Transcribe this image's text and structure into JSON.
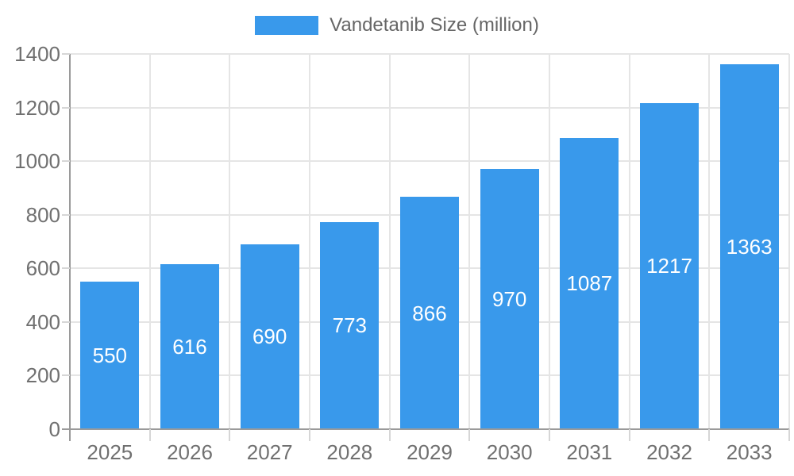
{
  "chart_data": {
    "type": "bar",
    "title": "",
    "xlabel": "",
    "ylabel": "",
    "series_name": "Vandetanib Size (million)",
    "categories": [
      "2025",
      "2026",
      "2027",
      "2028",
      "2029",
      "2030",
      "2031",
      "2032",
      "2033"
    ],
    "values": [
      550,
      616,
      690,
      773,
      866,
      970,
      1087,
      1217,
      1363
    ],
    "value_labels": [
      "550",
      "616",
      "690",
      "773",
      "866",
      "970",
      "1087",
      "1217",
      "1363"
    ],
    "ylim": [
      0,
      1400
    ],
    "y_ticks": [
      0,
      200,
      400,
      600,
      800,
      1000,
      1200,
      1400
    ],
    "y_tick_labels": [
      "0",
      "200",
      "400",
      "600",
      "800",
      "1000",
      "1200",
      "1400"
    ],
    "grid": true,
    "legend_position": "top-center",
    "bar_labels_inside": true
  },
  "colors": {
    "bar": "#3999eb",
    "value_label": "#ffffff",
    "axis_text": "#707070",
    "legend_text": "#666666",
    "gridline": "#e5e5e5",
    "axis_line": "#9a9a9a",
    "tick": "#d6d6d6",
    "background": "#ffffff"
  }
}
